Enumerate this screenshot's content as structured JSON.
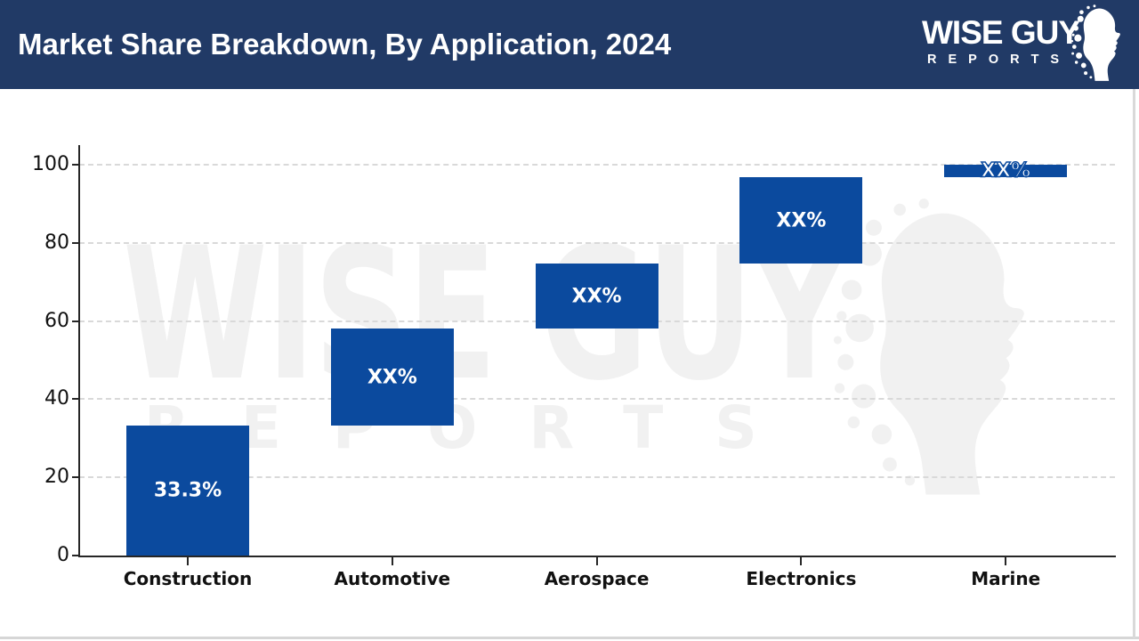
{
  "header": {
    "title": "Market Share Breakdown, By Application, 2024",
    "logo_line1": "WISE GUY",
    "logo_line2": "REPORTS"
  },
  "watermark": {
    "line1": "WISE GUY",
    "line2": "REPORTS"
  },
  "chart_data": {
    "type": "bar",
    "subtype": "waterfall",
    "title": "Market Share Breakdown, By Application, 2024",
    "categories": [
      "Construction",
      "Automotive",
      "Aerospace",
      "Electronics",
      "Marine"
    ],
    "segments": [
      {
        "category": "Construction",
        "start": 0,
        "end": 33.3,
        "label": "33.3%"
      },
      {
        "category": "Automotive",
        "start": 33.3,
        "end": 58,
        "label": "XX%"
      },
      {
        "category": "Aerospace",
        "start": 58,
        "end": 74.7,
        "label": "XX%"
      },
      {
        "category": "Electronics",
        "start": 74.7,
        "end": 96.7,
        "label": "XX%"
      },
      {
        "category": "Marine",
        "start": 96.7,
        "end": 100,
        "label": "XX%"
      }
    ],
    "yticks": [
      0,
      20,
      40,
      60,
      80,
      100
    ],
    "ylim": [
      0,
      105
    ],
    "grid": "horizontal-dashed",
    "legend": "none",
    "bar_color": "#0b4a9e",
    "bar_label_color": "#ffffff",
    "gridline_color": "#d9d9d9"
  }
}
